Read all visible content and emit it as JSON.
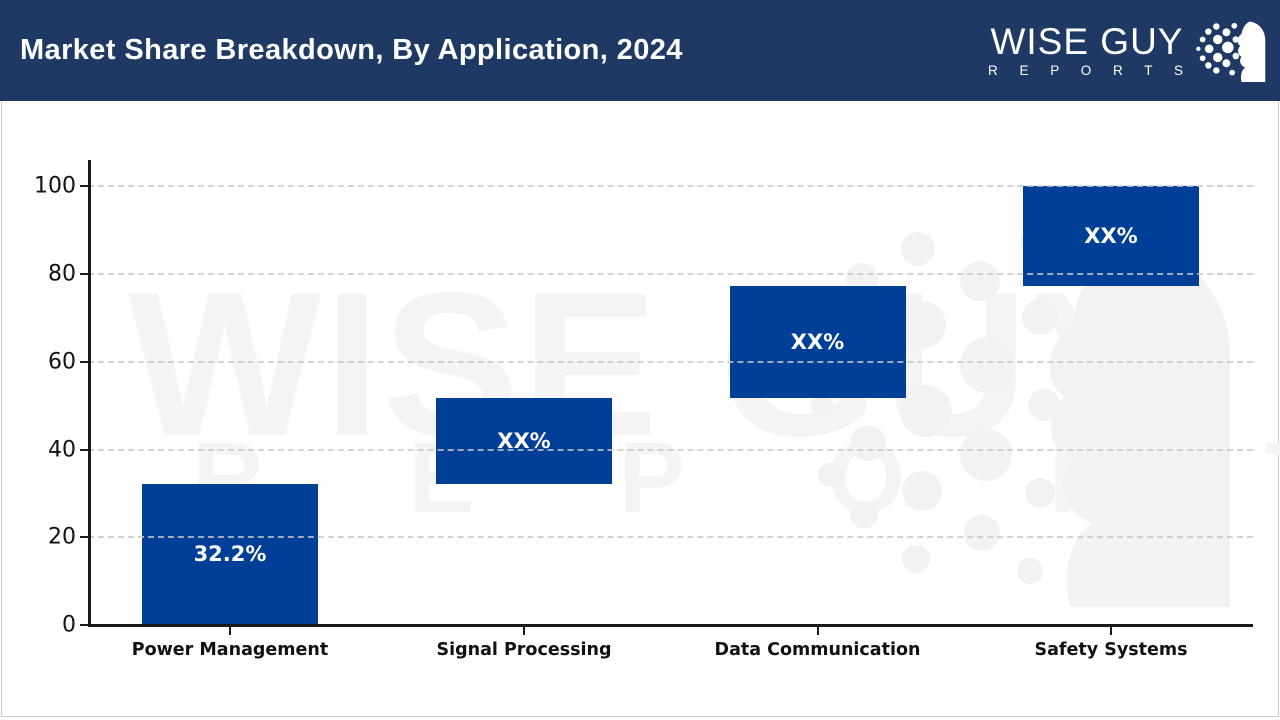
{
  "header": {
    "title": "Market Share Breakdown, By Application, 2024",
    "background": "#1f3864",
    "logo": {
      "line1": "WISE GUY",
      "line2": "R E P O R T S"
    }
  },
  "watermark": {
    "line1": "WISE GUY",
    "line2": "R E P O R T S"
  },
  "chart_data": {
    "type": "bar",
    "subtype": "waterfall",
    "title": "Market Share Breakdown, By Application, 2024",
    "categories": [
      "Power Management",
      "Signal Processing",
      "Data Communication",
      "Safety Systems"
    ],
    "segments": [
      {
        "category": "Power Management",
        "start": 0,
        "end": 32.2,
        "value": 32.2,
        "label": "32.2%"
      },
      {
        "category": "Signal Processing",
        "start": 32.2,
        "end": 51.7,
        "value": 19.5,
        "label": "XX%"
      },
      {
        "category": "Data Communication",
        "start": 51.7,
        "end": 77.2,
        "value": 25.5,
        "label": "XX%"
      },
      {
        "category": "Safety Systems",
        "start": 77.2,
        "end": 100,
        "value": 22.8,
        "label": "XX%"
      }
    ],
    "y_ticks": [
      0,
      20,
      40,
      60,
      80,
      100
    ],
    "ylim": [
      0,
      105
    ],
    "xlabel": "",
    "ylabel": "",
    "grid": true,
    "gridline_style": "dashed",
    "legend": false,
    "bar_color": "#003f98",
    "bar_label_color": "#ffffff",
    "axis_color": "#1a1a1a",
    "gridline_color": "#cccccc"
  }
}
